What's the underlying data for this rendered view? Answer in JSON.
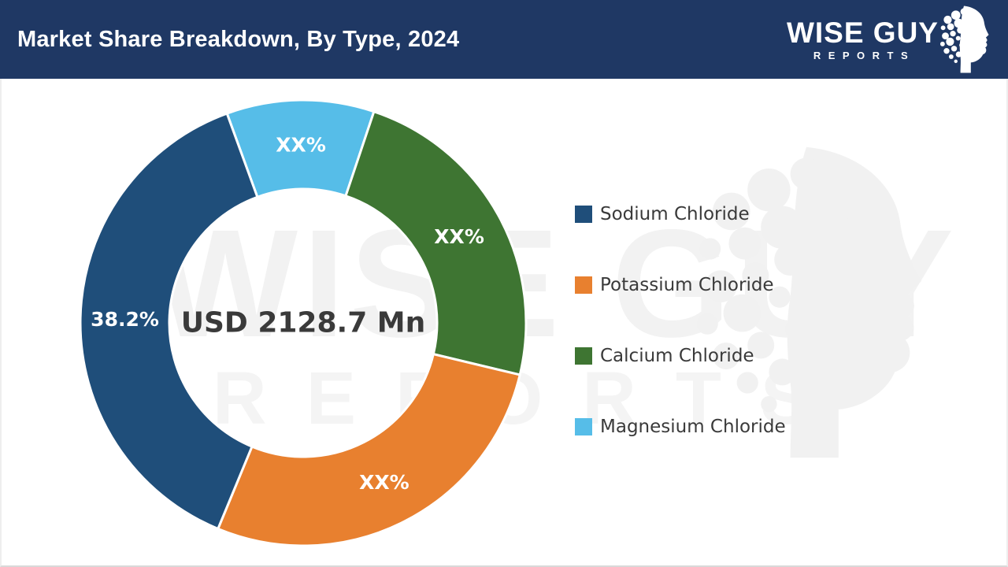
{
  "header": {
    "title": "Market Share Breakdown, By Type, 2024",
    "bg_color": "#1f3864",
    "logo": {
      "line1": "WISE GUY",
      "line2": "REPORTS"
    }
  },
  "watermark": {
    "line1": "WISE GUY",
    "line2": "REPORTS"
  },
  "chart_data": {
    "type": "pie",
    "subtype": "donut",
    "title": "Market Share Breakdown, By Type, 2024",
    "center_label": "USD 2128.7 Mn",
    "start_angle_deg": 340,
    "outer_radius_px": 283,
    "inner_radius_px": 170,
    "segments": [
      {
        "name": "Magnesium Chloride",
        "label": "XX%",
        "value_pct_est": 10.7,
        "color": "#56bde8"
      },
      {
        "name": "Calcium Chloride",
        "label": "XX%",
        "value_pct_est": 23.6,
        "color": "#3e7532"
      },
      {
        "name": "Potassium Chloride",
        "label": "XX%",
        "value_pct_est": 27.5,
        "color": "#e8802f"
      },
      {
        "name": "Sodium Chloride",
        "label": "38.2%",
        "value_pct_est": 38.2,
        "color": "#1f4e7a"
      }
    ],
    "legend": {
      "position": "right",
      "items": [
        {
          "label": "Sodium Chloride",
          "color": "#1f4e7a"
        },
        {
          "label": "Potassium Chloride",
          "color": "#e8802f"
        },
        {
          "label": "Calcium Chloride",
          "color": "#3e7532"
        },
        {
          "label": "Magnesium Chloride",
          "color": "#56bde8"
        }
      ]
    }
  }
}
